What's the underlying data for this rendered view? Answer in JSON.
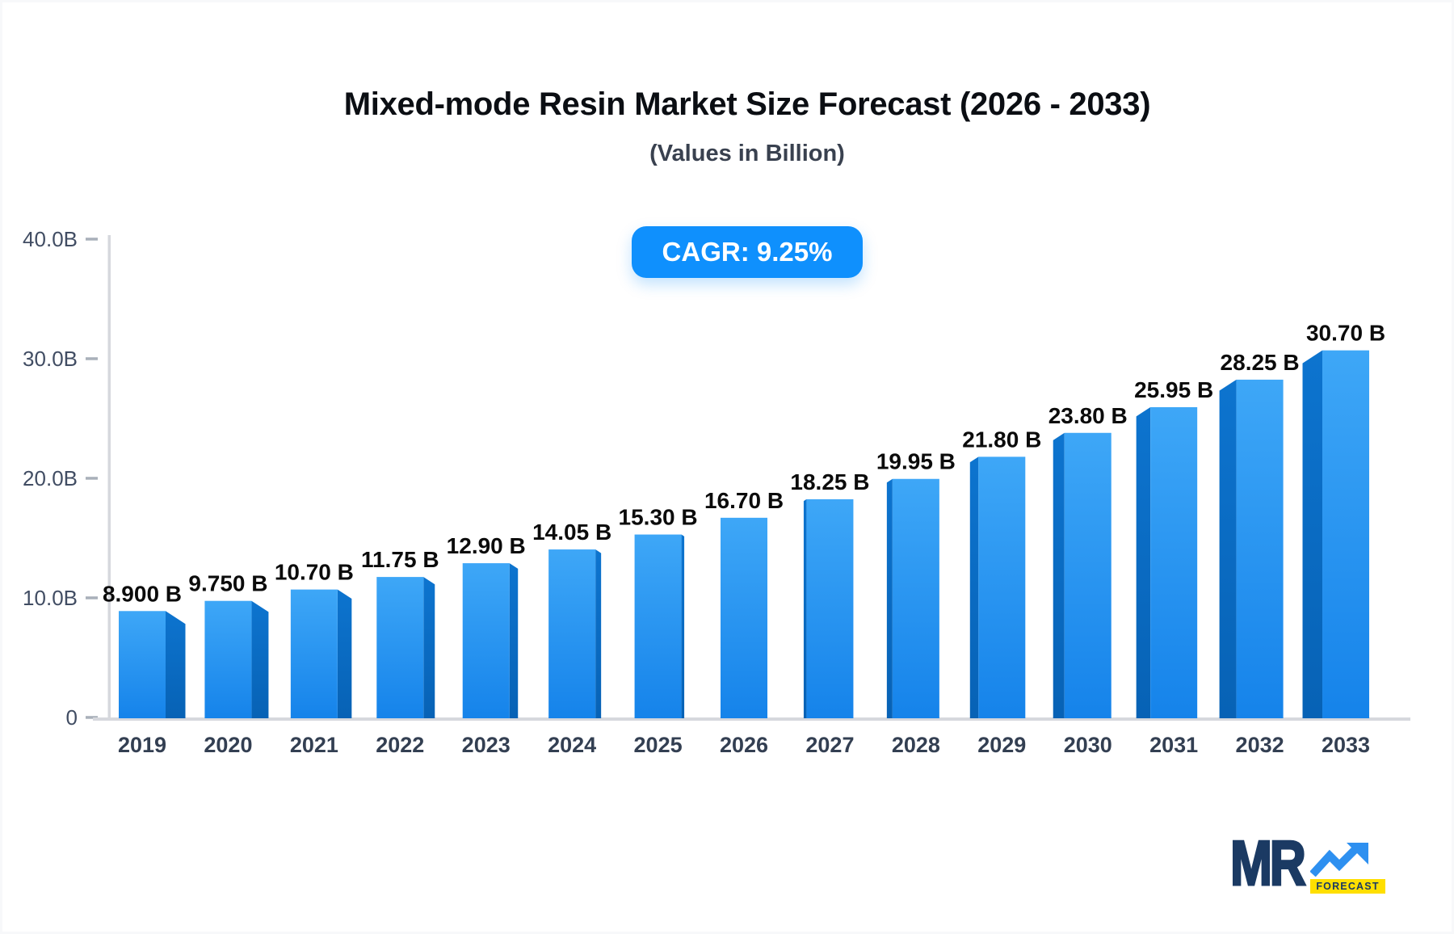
{
  "chart_data": {
    "type": "bar",
    "title": "Mixed-mode Resin Market Size Forecast (2026 - 2033)",
    "subtitle": "(Values in Billion)",
    "cagr_label": "CAGR: 9.25%",
    "categories": [
      "2019",
      "2020",
      "2021",
      "2022",
      "2023",
      "2024",
      "2025",
      "2026",
      "2027",
      "2028",
      "2029",
      "2030",
      "2031",
      "2032",
      "2033"
    ],
    "values": [
      8.9,
      9.75,
      10.7,
      11.75,
      12.9,
      14.05,
      15.3,
      16.7,
      18.25,
      19.95,
      21.8,
      23.8,
      25.95,
      28.25,
      30.7
    ],
    "value_labels": [
      "8.900 B",
      "9.750 B",
      "10.70 B",
      "11.75 B",
      "12.90 B",
      "14.05 B",
      "15.30 B",
      "16.70 B",
      "18.25 B",
      "19.95 B",
      "21.80 B",
      "23.80 B",
      "25.95 B",
      "28.25 B",
      "30.70 B"
    ],
    "yticks": [
      {
        "v": 0,
        "label": "0"
      },
      {
        "v": 10,
        "label": "10.0B"
      },
      {
        "v": 20,
        "label": "20.0B"
      },
      {
        "v": 30,
        "label": "30.0B"
      },
      {
        "v": 40,
        "label": "40.0B"
      }
    ],
    "ylim": [
      0,
      40
    ],
    "xlabel": "",
    "ylabel": "",
    "grid": false,
    "legend": false,
    "bar_style": "3d-perspective-toward-center",
    "style": {
      "bar_face_top": "#3ea7f7",
      "bar_face_bottom": "#1583ea",
      "bar_side_top": "#0d74cf",
      "bar_side_bottom": "#0762b5",
      "axis_line": "#d6d8dd",
      "tick_dash": "#a9b0ba",
      "tick_label_color": "#414d63",
      "category_label_color": "#333f52",
      "value_label_color": "#0b0b0b",
      "badge_bg": "#0f90fd",
      "badge_text_color": "#ffffff"
    }
  },
  "logo": {
    "text": "MR",
    "subtext": "FORECAST",
    "navy": "#1b3a63",
    "blue": "#2e90f0",
    "yellow": "#ffdf00"
  }
}
